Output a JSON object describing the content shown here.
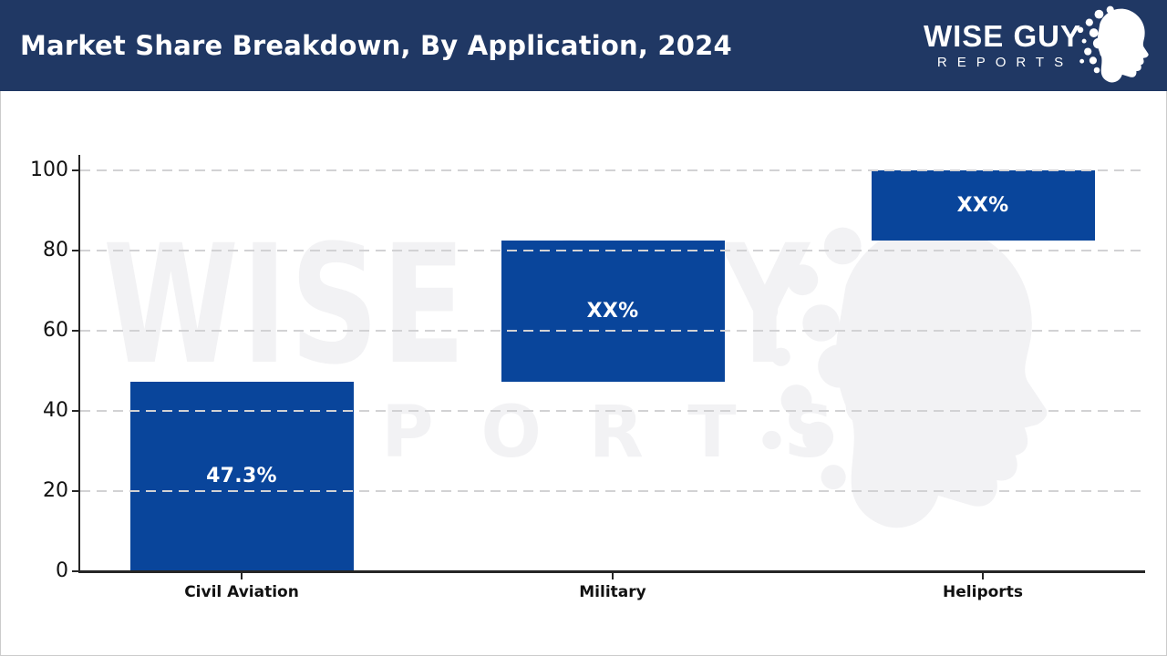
{
  "header": {
    "title": "Market Share Breakdown, By Application, 2024",
    "logo": {
      "wordmark": "WISE GUY",
      "subtitle": "REPORTS"
    }
  },
  "watermark": {
    "line1": "WISE GUY",
    "line2": "REPORTS"
  },
  "colors": {
    "header_bg": "#203864",
    "bar": "#09459b",
    "grid": "#d2d2d4",
    "axis": "#262626",
    "bar_label": "#ffffff",
    "tick_label": "#111111",
    "watermark": "#f2f2f4"
  },
  "chart_data": {
    "type": "bar",
    "variant": "waterfall",
    "title": "Market Share Breakdown, By Application, 2024",
    "categories": [
      "Civil Aviation",
      "Military",
      "Heliports"
    ],
    "segments": [
      {
        "category": "Civil Aviation",
        "start": 0,
        "end": 47.3,
        "value_label": "47.3%"
      },
      {
        "category": "Military",
        "start": 47.3,
        "end": 82.6,
        "value_label": "XX%"
      },
      {
        "category": "Heliports",
        "start": 82.6,
        "end": 100,
        "value_label": "XX%"
      }
    ],
    "xlabel": "",
    "ylabel": "",
    "ylim": [
      0,
      100
    ],
    "y_ticks": [
      0,
      20,
      40,
      60,
      80,
      100
    ],
    "grid": {
      "horizontal": true,
      "style": "dashed"
    },
    "legend": "none",
    "bar_color": "#09459b",
    "label_color": "#ffffff"
  }
}
